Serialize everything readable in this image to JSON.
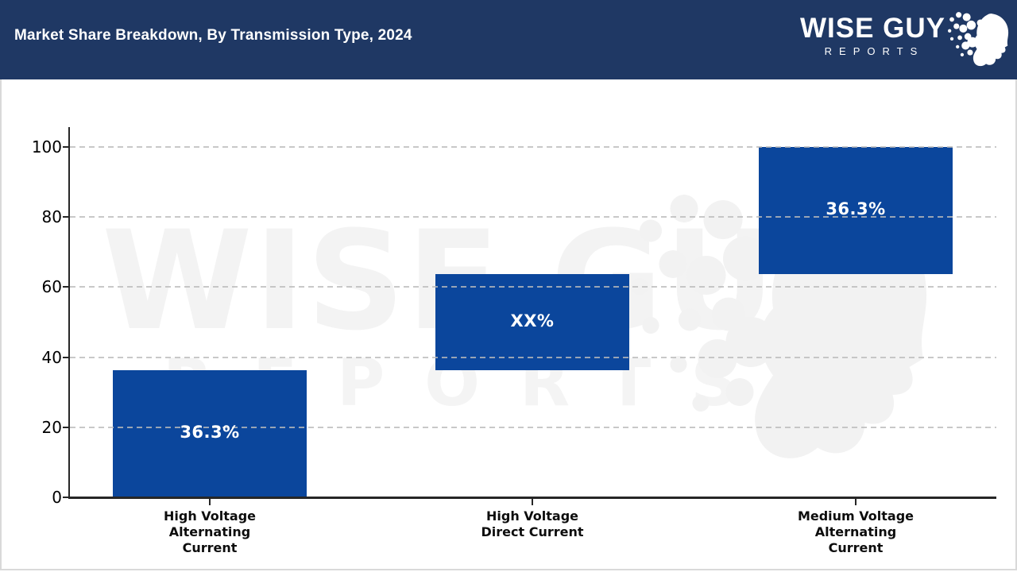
{
  "header": {
    "title": "Market Share Breakdown, By Transmission Type, 2024",
    "logo": {
      "line1": "WISE GUY",
      "line2": "REPORTS"
    },
    "bg_color": "#1f3864"
  },
  "watermark": {
    "line1": "WISE GUY",
    "line2": "REPORTS"
  },
  "chart_data": {
    "type": "bar",
    "variant": "waterfall-floating-bars",
    "title": "Market Share Breakdown, By Transmission Type, 2024",
    "xlabel": "",
    "ylabel": "",
    "ylim": [
      0,
      100
    ],
    "yticks": [
      0,
      20,
      40,
      60,
      80,
      100
    ],
    "grid": "horizontal-dashed",
    "legend": "none",
    "categories": [
      "High Voltage Alternating Current",
      "High Voltage Direct Current",
      "Medium Voltage Alternating Current"
    ],
    "category_lines": [
      [
        "High Voltage",
        "Alternating",
        "Current"
      ],
      [
        "High Voltage",
        "Direct Current"
      ],
      [
        "Medium Voltage",
        "Alternating",
        "Current"
      ]
    ],
    "segments": [
      {
        "category": "High Voltage Alternating Current",
        "from": 0,
        "to": 36.3,
        "label": "36.3%"
      },
      {
        "category": "High Voltage Direct Current",
        "from": 36.3,
        "to": 63.7,
        "label": "XX%"
      },
      {
        "category": "Medium Voltage Alternating Current",
        "from": 63.7,
        "to": 100,
        "label": "36.3%"
      }
    ],
    "colors": {
      "bar": "#0b469c",
      "bar_label": "#ffffff",
      "grid": "#bbbbbb",
      "axis": "#262626",
      "tick_text": "#000000",
      "category_text": "#0d0d0d",
      "header_bg": "#1f3864",
      "watermark": "#f3f3f3",
      "frame_border": "#d9d9d9"
    }
  }
}
